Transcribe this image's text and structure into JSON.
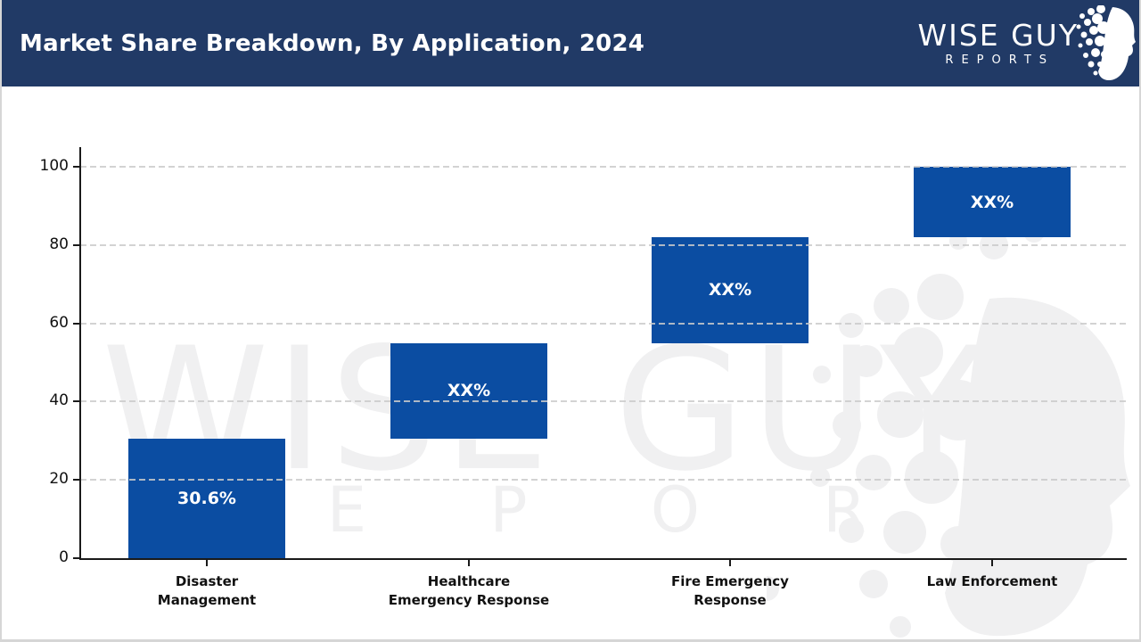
{
  "header": {
    "title": "Market Share Breakdown, By Application, 2024",
    "bg_color": "#213a66",
    "logo": {
      "wordmark": "WISE GUY",
      "subtext": "REPORTS"
    }
  },
  "watermark": {
    "wordmark": "WISE GUY",
    "subtext": "R E P O R T S"
  },
  "chart_data": {
    "type": "bar",
    "variant": "waterfall",
    "title": "Market Share Breakdown, By Application, 2024",
    "categories": [
      "Disaster Management",
      "Healthcare Emergency Response",
      "Fire Emergency Response",
      "Law Enforcement"
    ],
    "category_label_lines": [
      [
        "Disaster",
        "Management"
      ],
      [
        "Healthcare",
        "Emergency Response"
      ],
      [
        "Fire Emergency",
        "Response"
      ],
      [
        "Law Enforcement"
      ]
    ],
    "segments": [
      {
        "category": "Disaster Management",
        "start": 0,
        "end": 30.6,
        "label": "30.6%"
      },
      {
        "category": "Healthcare Emergency Response",
        "start": 30.6,
        "end": 55,
        "label": "XX%"
      },
      {
        "category": "Fire Emergency Response",
        "start": 55,
        "end": 82,
        "label": "XX%"
      },
      {
        "category": "Law Enforcement",
        "start": 82,
        "end": 100,
        "label": "XX%"
      }
    ],
    "ylim": [
      0,
      100
    ],
    "y_ticks": [
      0,
      20,
      40,
      60,
      80,
      100
    ],
    "grid": "horizontal-dashed",
    "legend": "none",
    "bar_color": "#0b4da2",
    "value_label_color": "#ffffff",
    "axis_color": "#1a1a1a"
  }
}
